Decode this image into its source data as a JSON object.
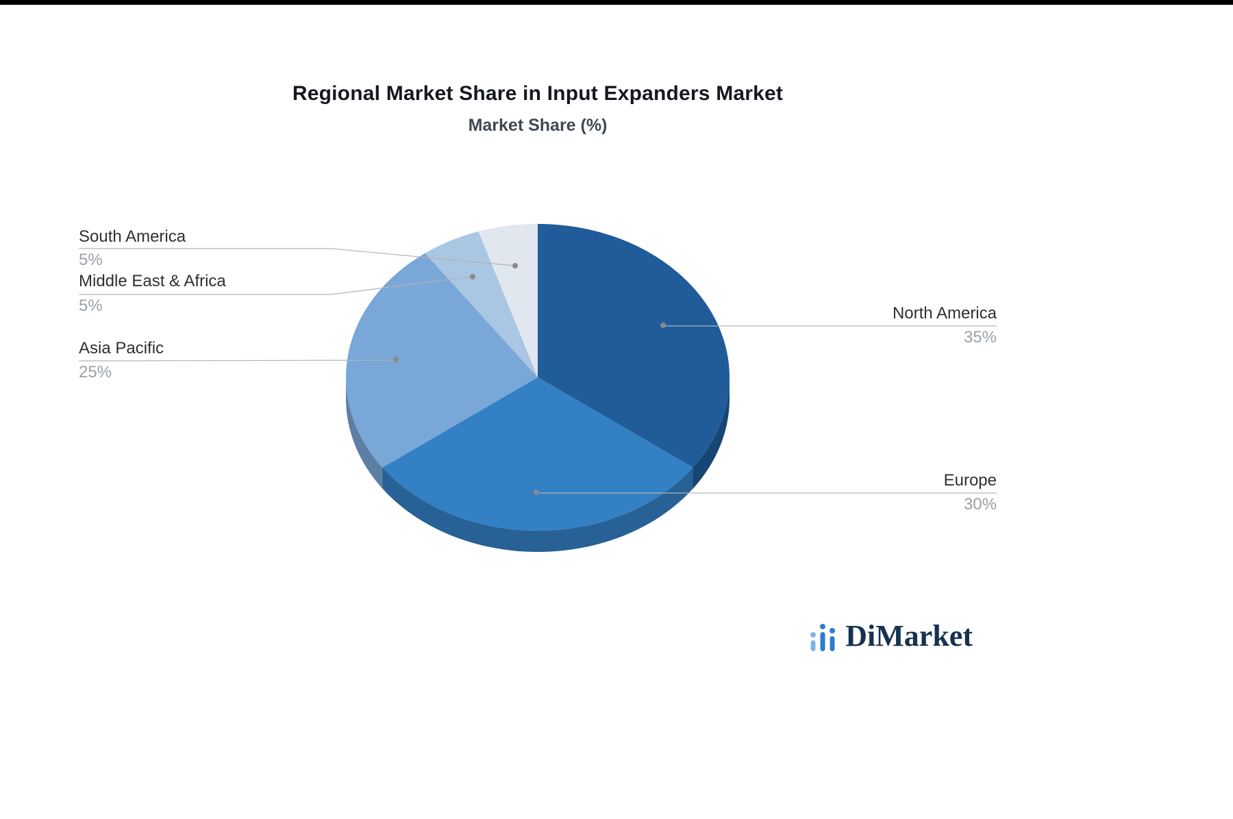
{
  "chart_data": {
    "type": "pie",
    "style": "3d-pie",
    "title": "Regional Market Share in Input Expanders Market",
    "subtitle": "Market Share (%)",
    "labels": [
      "North America",
      "Europe",
      "Asia Pacific",
      "Middle East & Africa",
      "South America"
    ],
    "values": [
      35,
      30,
      25,
      5,
      5
    ],
    "unit": "%",
    "value_labels": [
      "35%",
      "30%",
      "25%",
      "5%",
      "5%"
    ],
    "colors": [
      "#1f5c99",
      "#3380c4",
      "#79a7d7",
      "#a9c6e3",
      "#e1e7ee"
    ],
    "start_angle": "top",
    "direction": "clockwise",
    "legend_position": "none",
    "callout_line_color": "#b3b3b3",
    "callout_dot_color": "#8a8a8a"
  },
  "branding": {
    "logo_text": "DiMarket",
    "logo_icon": "bar-chart-icon",
    "logo_icon_color": "#2e7cd0",
    "logo_text_color": "#16324f"
  }
}
